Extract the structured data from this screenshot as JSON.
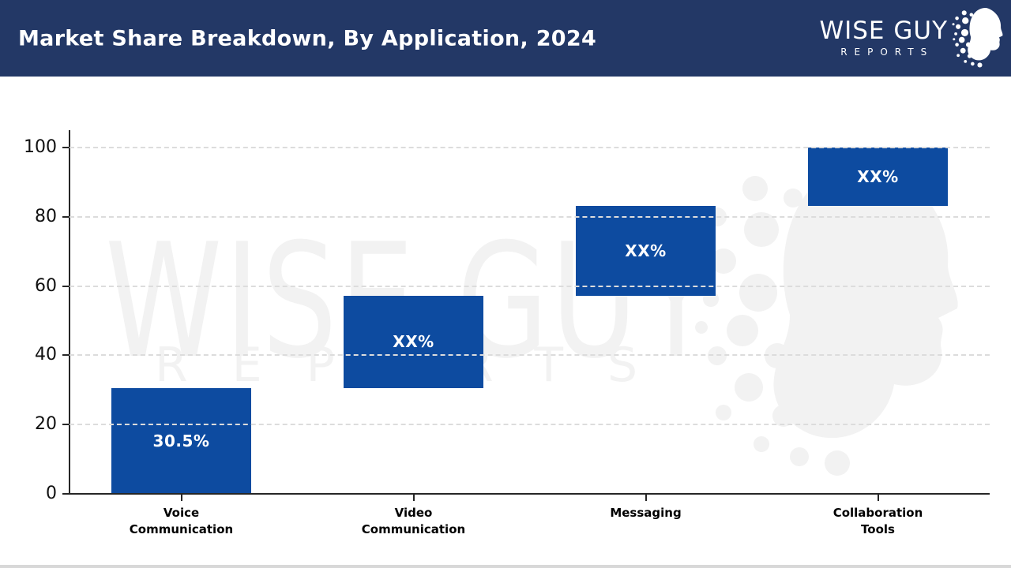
{
  "header": {
    "title": "Market Share Breakdown, By Application, 2024",
    "logo": {
      "wordmark": "WISE GUY",
      "sub": "REPORTS"
    }
  },
  "watermark": {
    "line1": "WISE GUY",
    "line2": "REPORTS"
  },
  "chart_data": {
    "type": "bar",
    "subtype": "waterfall",
    "title": "Market Share Breakdown, By Application, 2024",
    "xlabel": "",
    "ylabel": "",
    "legend": null,
    "grid": "horizontal-dashed",
    "ylim": [
      0,
      105
    ],
    "yticks": [
      0,
      20,
      40,
      60,
      80,
      100
    ],
    "categories": [
      [
        "Voice",
        "Communication"
      ],
      [
        "Video",
        "Communication"
      ],
      [
        "Messaging"
      ],
      [
        "Collaboration",
        "Tools"
      ]
    ],
    "segments": [
      {
        "name": "Voice Communication",
        "start": 0,
        "end": 30.5,
        "label": "30.5%"
      },
      {
        "name": "Video Communication",
        "start": 30.5,
        "end": 57.2,
        "label": "XX%"
      },
      {
        "name": "Messaging",
        "start": 57.2,
        "end": 83.2,
        "label": "XX%"
      },
      {
        "name": "Collaboration Tools",
        "start": 83.2,
        "end": 100,
        "label": "XX%"
      }
    ],
    "colors": {
      "bar": "#0d4ba0",
      "header_bg": "#233866",
      "axis": "#262626",
      "gridline": "#dcdcdc",
      "bar_label": "#ffffff",
      "watermark": "#f2f2f2",
      "bottom_strip": "#d8d8d8"
    }
  }
}
